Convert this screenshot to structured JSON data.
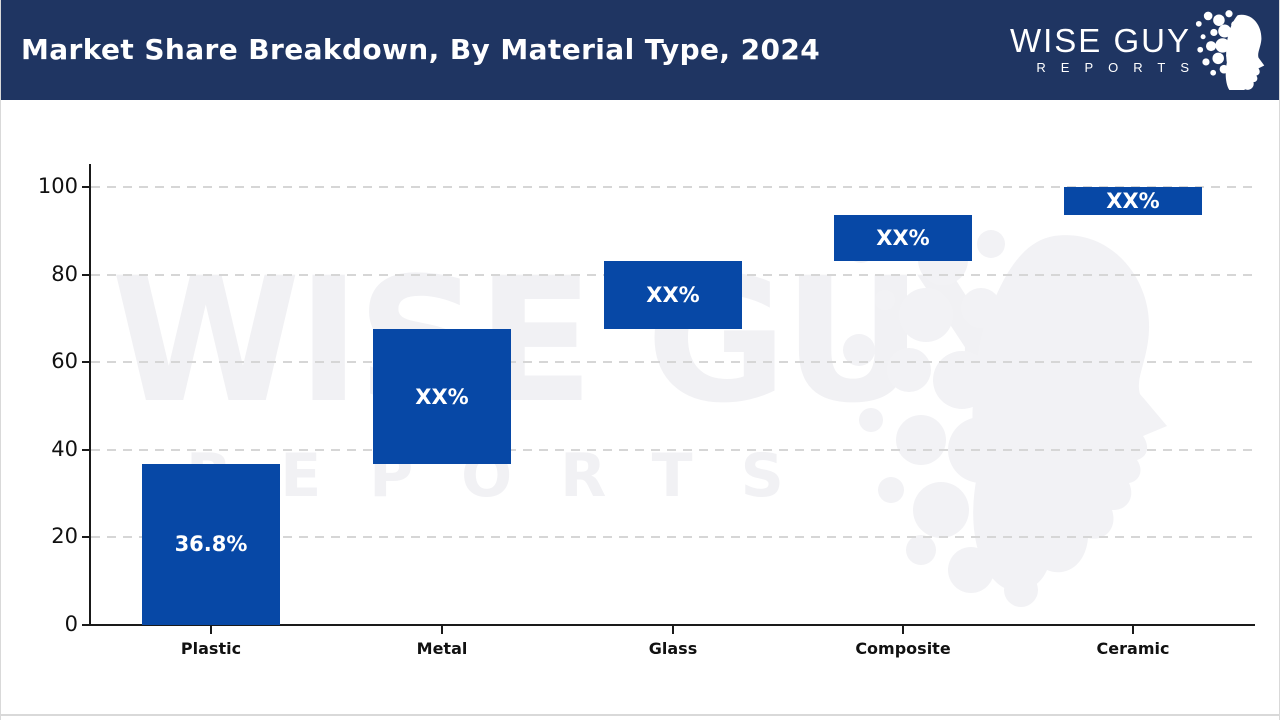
{
  "header": {
    "title": "Market Share Breakdown, By Material Type, 2024",
    "bg_color": "#1F3562",
    "logo": {
      "line1": "WISE GUY",
      "line2": "REPORTS"
    }
  },
  "watermark": {
    "line1": "WISE GUY",
    "line2": "REPORTS"
  },
  "chart_data": {
    "type": "bar",
    "subtype": "waterfall",
    "title": "Market Share Breakdown, By Material Type, 2024",
    "categories": [
      "Plastic",
      "Metal",
      "Glass",
      "Composite",
      "Ceramic"
    ],
    "segments": [
      {
        "category": "Plastic",
        "start": 0,
        "end": 36.8,
        "label": "36.8%"
      },
      {
        "category": "Metal",
        "start": 36.8,
        "end": 67.5,
        "label": "XX%"
      },
      {
        "category": "Glass",
        "start": 67.5,
        "end": 83,
        "label": "XX%"
      },
      {
        "category": "Composite",
        "start": 83,
        "end": 93.5,
        "label": "XX%"
      },
      {
        "category": "Ceramic",
        "start": 93.5,
        "end": 100,
        "label": "XX%"
      }
    ],
    "ylim": [
      0,
      100
    ],
    "yticks": [
      0,
      20,
      40,
      60,
      80,
      100
    ],
    "xlabel": "",
    "ylabel": "",
    "grid": {
      "horizontal": true,
      "style": "dashed",
      "color": "#d6d6d6"
    },
    "legend": null,
    "bar_color": "#0748A6",
    "bar_label_color": "#ffffff"
  }
}
